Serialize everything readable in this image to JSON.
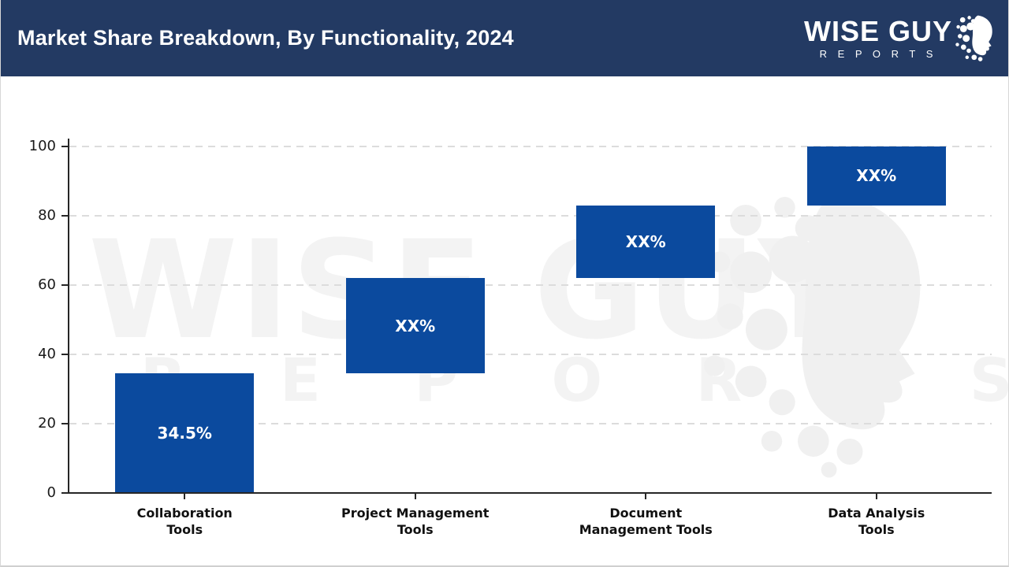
{
  "header": {
    "title": "Market Share Breakdown, By Functionality, 2024"
  },
  "logo": {
    "wordmark": "WISE GUY",
    "subtext": "R E P O R T S",
    "head_icon": "dotted-face-profile"
  },
  "watermark": {
    "line1": "WISE GUY",
    "line2": "R E P O R T S",
    "head_icon": "dotted-face-profile"
  },
  "colors": {
    "header_bg": "#233a63",
    "bar": "#0b4a9e",
    "bar_label": "#ffffff",
    "grid": "#dcdcdc",
    "axis": "#262626",
    "tick_text": "#1a1a1a",
    "category_text": "#111111",
    "watermark": "#f3f3f3"
  },
  "chart_data": {
    "type": "bar",
    "subtype": "waterfall-floating-bars",
    "title": "Market Share Breakdown, By Functionality, 2024",
    "categories": [
      "Collaboration\nTools",
      "Project Management\nTools",
      "Document\nManagement Tools",
      "Data Analysis\nTools"
    ],
    "segments": [
      {
        "category": "Collaboration Tools",
        "label": "34.5%",
        "start": 0,
        "end": 34.5
      },
      {
        "category": "Project Management Tools",
        "label": "XX%",
        "start": 34.5,
        "end": 62
      },
      {
        "category": "Document Management Tools",
        "label": "XX%",
        "start": 62,
        "end": 83
      },
      {
        "category": "Data Analysis Tools",
        "label": "XX%",
        "start": 83,
        "end": 100
      }
    ],
    "ylim": [
      0,
      100
    ],
    "yticks": [
      0,
      20,
      40,
      60,
      80,
      100
    ],
    "xlabel": "",
    "ylabel": "",
    "grid": "horizontal-dashed",
    "legend": "none"
  }
}
